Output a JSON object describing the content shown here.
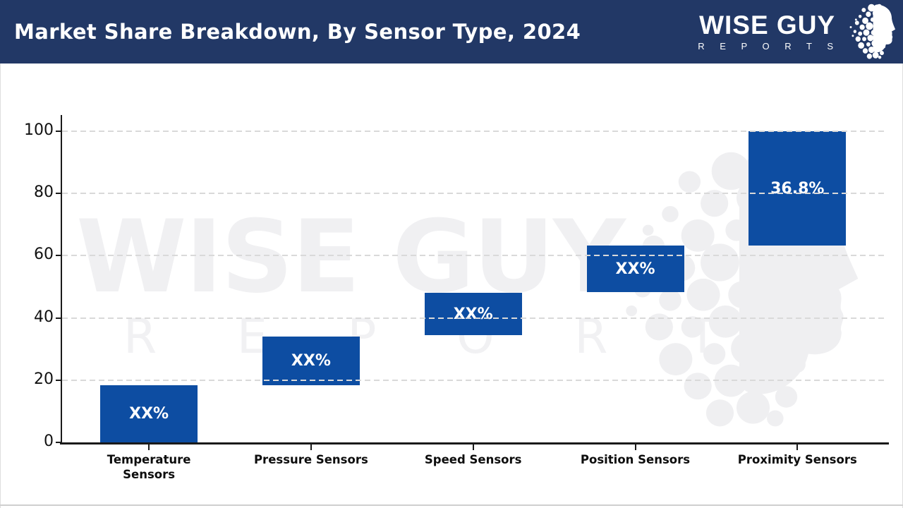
{
  "header": {
    "title": "Market Share Breakdown, By Sensor Type, 2024",
    "bg_color": "#223866",
    "logo": {
      "line1": "WISE GUY",
      "line2": "R E P O R T S"
    }
  },
  "watermark": {
    "line1": "WISE GUY",
    "line2": "R E P O R T S"
  },
  "chart_data": {
    "type": "bar",
    "subtype": "waterfall",
    "title": "Market Share Breakdown, By Sensor Type, 2024",
    "xlabel": "",
    "ylabel": "",
    "ylim": [
      0,
      105
    ],
    "y_ticks": [
      0,
      20,
      40,
      60,
      80,
      100
    ],
    "grid": "dashed-horizontal",
    "legend": "none",
    "bar_color": "#0d4da2",
    "bar_label_color": "#ffffff",
    "categories": [
      "Temperature Sensors",
      "Pressure Sensors",
      "Speed Sensors",
      "Position Sensors",
      "Proximity Sensors"
    ],
    "tick_labels": [
      "Temperature\nSensors",
      "Pressure Sensors",
      "Speed Sensors",
      "Position Sensors",
      "Proximity Sensors"
    ],
    "segments": [
      {
        "category": "Temperature Sensors",
        "start": 0,
        "end": 18.3,
        "label": "XX%"
      },
      {
        "category": "Pressure Sensors",
        "start": 18.3,
        "end": 34.1,
        "label": "XX%"
      },
      {
        "category": "Speed Sensors",
        "start": 34.4,
        "end": 48.0,
        "label": "XX%"
      },
      {
        "category": "Position Sensors",
        "start": 48.3,
        "end": 63.2,
        "label": "XX%"
      },
      {
        "category": "Proximity Sensors",
        "start": 63.2,
        "end": 100,
        "label": "36.8%"
      }
    ]
  }
}
